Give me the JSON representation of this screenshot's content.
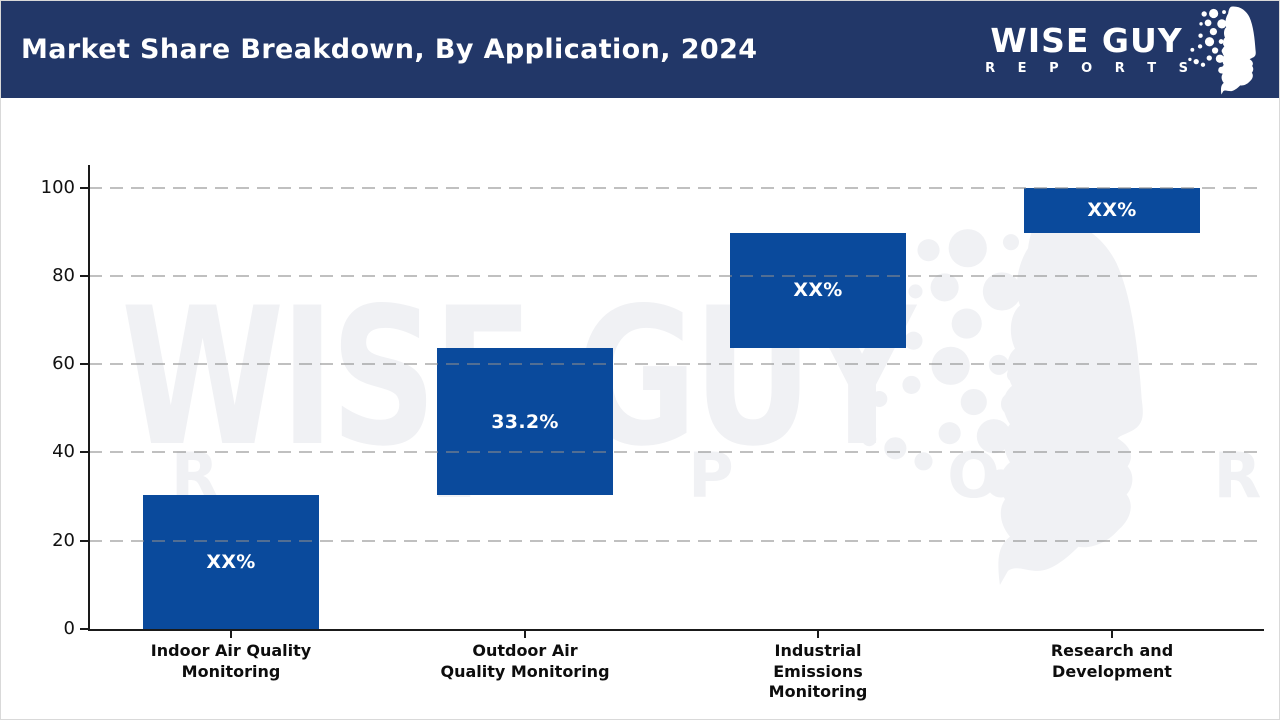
{
  "header": {
    "title": "Market Share Breakdown, By Application, 2024",
    "logo": {
      "line1": "WISE GUY",
      "line2": "R E P O R T S"
    }
  },
  "watermark": {
    "line1": "WISE GUY",
    "line2": "R E P O R T S"
  },
  "colors": {
    "header_background": "#223768",
    "bar_blue": "#0a4a9c",
    "watermark_gray": "#f0f1f4",
    "grid_gray": "#d0d0d0"
  },
  "chart_data": {
    "type": "bar",
    "subtype": "waterfall-segment-bars",
    "title": "Market Share Breakdown, By Application, 2024",
    "xlabel": "",
    "ylabel": "",
    "ylim": [
      0,
      104
    ],
    "yticks": [
      0,
      20,
      40,
      60,
      80,
      100
    ],
    "grid": {
      "axis": "y",
      "style": "dashed",
      "drawn_over_bars": true
    },
    "legend": null,
    "categories": [
      "Indoor Air Quality Monitoring",
      "Outdoor Air Quality Monitoring",
      "Industrial Emissions Monitoring",
      "Research and Development"
    ],
    "segments": [
      {
        "category": "Indoor Air Quality Monitoring",
        "label_lines": [
          "Indoor Air Quality",
          "Monitoring"
        ],
        "start": 0,
        "end": 30.4,
        "value": 30.4,
        "value_label": "XX%"
      },
      {
        "category": "Outdoor Air Quality Monitoring",
        "label_lines": [
          "Outdoor Air",
          "Quality Monitoring"
        ],
        "start": 30.4,
        "end": 63.6,
        "value": 33.2,
        "value_label": "33.2%"
      },
      {
        "category": "Industrial Emissions Monitoring",
        "label_lines": [
          "Industrial",
          "Emissions",
          "Monitoring"
        ],
        "start": 63.6,
        "end": 89.8,
        "value": 26.2,
        "value_label": "XX%"
      },
      {
        "category": "Research and Development",
        "label_lines": [
          "Research and",
          "Development"
        ],
        "start": 89.8,
        "end": 100,
        "value": 10.2,
        "value_label": "XX%"
      }
    ]
  }
}
